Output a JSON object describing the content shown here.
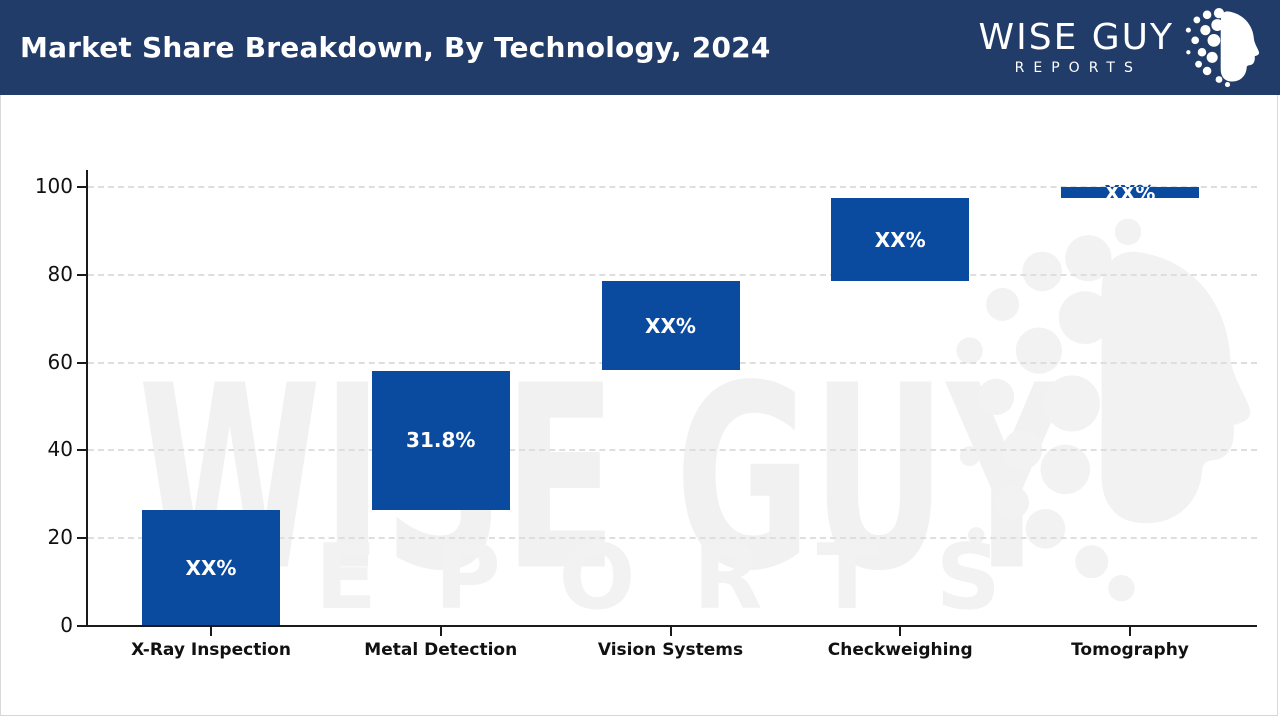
{
  "header": {
    "title": "Market Share Breakdown, By Technology, 2024",
    "bg_color": "#223c6a",
    "logo": {
      "line1": "WISE GUY",
      "line2": "REPORTS"
    }
  },
  "watermark": {
    "line1": "WISE GUY",
    "line2": "REPORTS"
  },
  "chart_data": {
    "type": "bar",
    "subtype": "waterfall",
    "title": "Market Share Breakdown, By Technology, 2024",
    "categories": [
      "X-Ray Inspection",
      "Metal Detection",
      "Vision Systems",
      "Checkweighing",
      "Tomography"
    ],
    "segments": [
      {
        "category": "X-Ray Inspection",
        "start": 0,
        "end": 26.4,
        "value_label": "XX%"
      },
      {
        "category": "Metal Detection",
        "start": 26.4,
        "end": 58.2,
        "value_label": "31.8%"
      },
      {
        "category": "Vision Systems",
        "start": 58.2,
        "end": 78.6,
        "value_label": "XX%"
      },
      {
        "category": "Checkweighing",
        "start": 78.6,
        "end": 97.4,
        "value_label": "XX%"
      },
      {
        "category": "Tomography",
        "start": 97.4,
        "end": 100,
        "value_label": "XX%"
      }
    ],
    "y_ticks": [
      0,
      20,
      40,
      60,
      80,
      100
    ],
    "ylim": [
      0,
      105
    ],
    "xlabel": "",
    "ylabel": "",
    "grid": "horizontal dashed",
    "legend": "none",
    "bar_color": "#0a4a9f",
    "bar_label_color": "#ffffff"
  }
}
